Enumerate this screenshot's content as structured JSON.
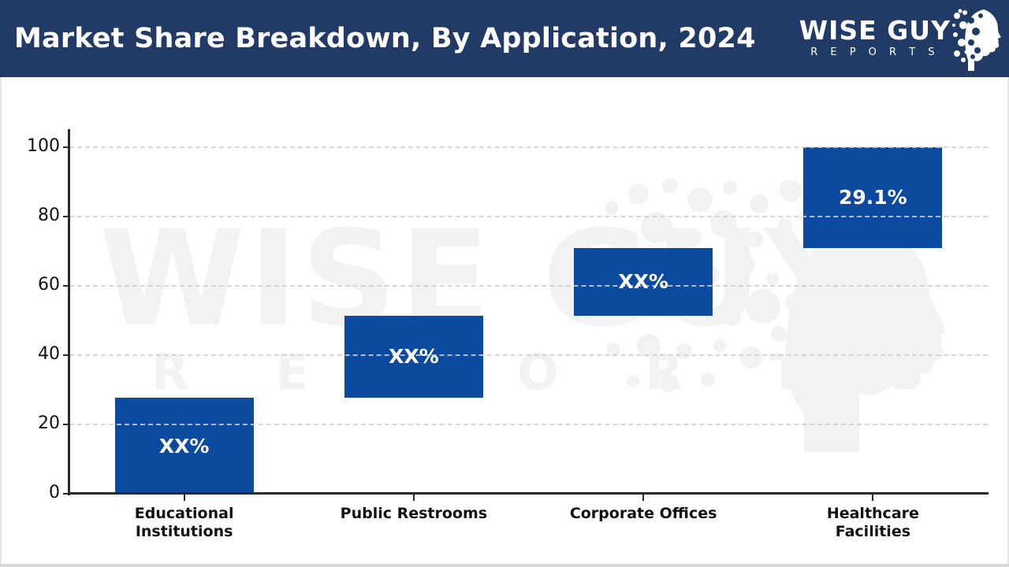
{
  "header": {
    "title": "Market Share Breakdown, By Application, 2024",
    "logo": {
      "wordmark": "WISE GUY",
      "subtitle": "R E P O R T S"
    }
  },
  "watermark": {
    "wordmark": "WISE GUY",
    "subtitle": "R E P O R T S"
  },
  "chart_data": {
    "type": "bar",
    "variant": "floating-waterfall",
    "title": "Market Share Breakdown, By Application, 2024",
    "categories": [
      "Educational Institutions",
      "Public Restrooms",
      "Corporate Offices",
      "Healthcare Facilities"
    ],
    "segments": [
      {
        "category": "Educational Institutions",
        "category_lines": [
          "Educational",
          "Institutions"
        ],
        "start": 0,
        "end": 27.7,
        "value": 27.7,
        "label": "XX%"
      },
      {
        "category": "Public Restrooms",
        "category_lines": [
          "Public Restrooms"
        ],
        "start": 27.7,
        "end": 51.4,
        "value": 23.7,
        "label": "XX%"
      },
      {
        "category": "Corporate Offices",
        "category_lines": [
          "Corporate Offices"
        ],
        "start": 51.4,
        "end": 70.9,
        "value": 19.5,
        "label": "XX%"
      },
      {
        "category": "Healthcare Facilities",
        "category_lines": [
          "Healthcare",
          "Facilities"
        ],
        "start": 70.9,
        "end": 100,
        "value": 29.1,
        "label": "29.1%"
      }
    ],
    "y_ticks": [
      0,
      20,
      40,
      60,
      80,
      100
    ],
    "ylim": [
      0,
      105
    ],
    "xlabel": "",
    "ylabel": "",
    "grid": "horizontal-dashed",
    "legend": "none",
    "colors": {
      "bar": "#0b4a9f",
      "bar_label": "#ffffff",
      "grid": "#cfcfcf",
      "axis": "#2a2a2a",
      "tick_text": "#111111",
      "header_bg": "#213a66",
      "header_text": "#ffffff",
      "watermark": "#f2f2f3"
    }
  }
}
